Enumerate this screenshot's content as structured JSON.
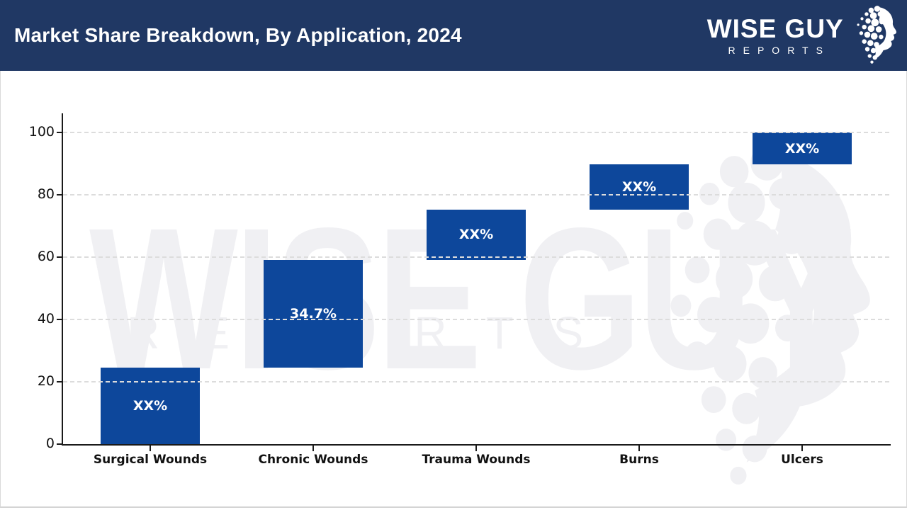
{
  "header": {
    "title": "Market Share Breakdown, By Application, 2024",
    "bg_color": "#203864",
    "logo": {
      "line1": "WISE GUY",
      "line2": "REPORTS"
    }
  },
  "watermark": {
    "line1": "WISE GUY",
    "line2": "REPORTS"
  },
  "chart_data": {
    "type": "bar",
    "subtype": "waterfall-stacked-segments",
    "title": "Market Share Breakdown, By Application, 2024",
    "categories": [
      "Surgical Wounds",
      "Chronic Wounds",
      "Trauma Wounds",
      "Burns",
      "Ulcers"
    ],
    "bars": [
      {
        "category": "Surgical Wounds",
        "start": 0,
        "end": 24.5,
        "value_label": "XX%"
      },
      {
        "category": "Chronic Wounds",
        "start": 24.5,
        "end": 59.2,
        "value_label": "34.7%"
      },
      {
        "category": "Trauma Wounds",
        "start": 59.2,
        "end": 75.3,
        "value_label": "XX%"
      },
      {
        "category": "Burns",
        "start": 75.3,
        "end": 89.7,
        "value_label": "XX%"
      },
      {
        "category": "Ulcers",
        "start": 89.7,
        "end": 100,
        "value_label": "XX%"
      }
    ],
    "yticks": [
      0,
      20,
      40,
      60,
      80,
      100
    ],
    "ylim": [
      0,
      105
    ],
    "xlabel": "",
    "ylabel": "",
    "grid": "horizontal-dashed",
    "legend": "none",
    "bar_color": "#0d479b",
    "bar_label_color": "#ffffff"
  }
}
